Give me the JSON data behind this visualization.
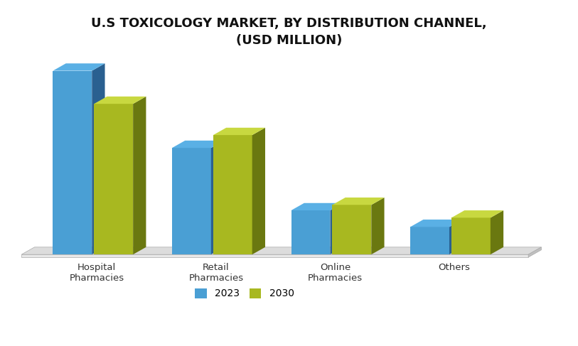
{
  "title": "U.S TOXICOLOGY MARKET, BY DISTRIBUTION CHANNEL,\n(USD MILLION)",
  "categories": [
    "Hospital\nPharmacies",
    "Retail\nPharmacies",
    "Online\nPharmacies",
    "Others"
  ],
  "values_2023": [
    100,
    58,
    24,
    15
  ],
  "values_2030": [
    82,
    65,
    27,
    20
  ],
  "color_2023_front": "#4a9fd4",
  "color_2023_side": "#2a6090",
  "color_2023_top": "#5ab0e5",
  "color_2030_front": "#a8b820",
  "color_2030_side": "#6a7810",
  "color_2030_top": "#c8d840",
  "floor_top": "#dcdcdc",
  "floor_side": "#c0c0c0",
  "legend_labels": [
    "2023",
    "2030"
  ],
  "background_color": "#ffffff",
  "title_fontsize": 13,
  "label_fontsize": 9.5,
  "legend_fontsize": 10
}
